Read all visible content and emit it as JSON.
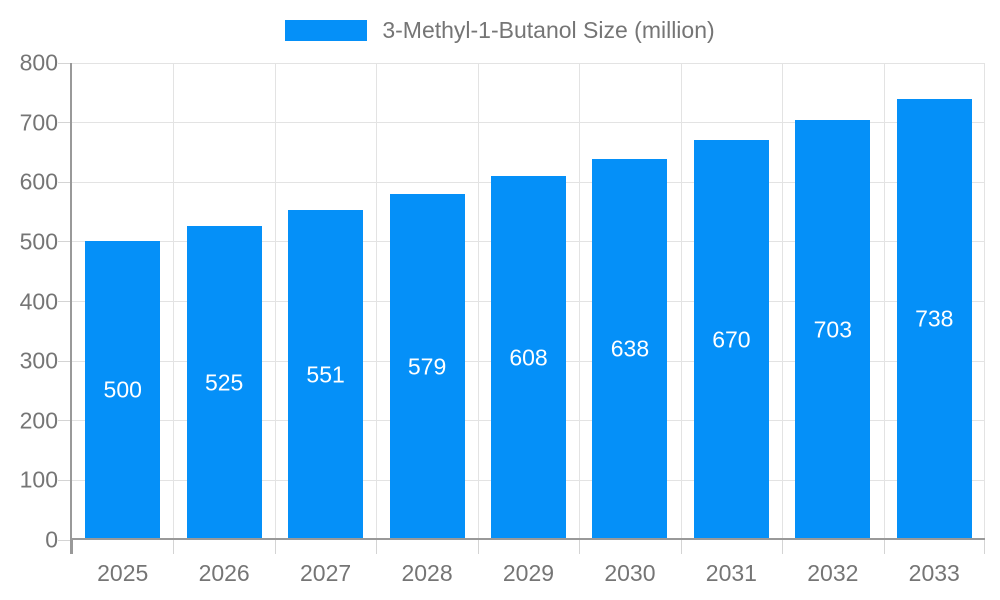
{
  "legend": {
    "label": "3-Methyl-1-Butanol Size (million)"
  },
  "chart_data": {
    "type": "bar",
    "title": "3-Methyl-1-Butanol Size (million)",
    "categories": [
      "2025",
      "2026",
      "2027",
      "2028",
      "2029",
      "2030",
      "2031",
      "2032",
      "2033"
    ],
    "values": [
      500,
      525,
      551,
      579,
      608,
      638,
      670,
      703,
      738
    ],
    "xlabel": "",
    "ylabel": "",
    "ylim": [
      0,
      800
    ],
    "ytick_step": 100,
    "ytick_labels": [
      "0",
      "100",
      "200",
      "300",
      "400",
      "500",
      "600",
      "700",
      "800"
    ],
    "grid": true,
    "legend_position": "top",
    "colors": {
      "bar": "#0590f8",
      "value_label": "#ffffff",
      "axis_text": "#757575",
      "gridline": "#e3e3e3",
      "axis_line": "#999999",
      "tick_mark": "#d4d4d4",
      "background": "#ffffff"
    }
  }
}
